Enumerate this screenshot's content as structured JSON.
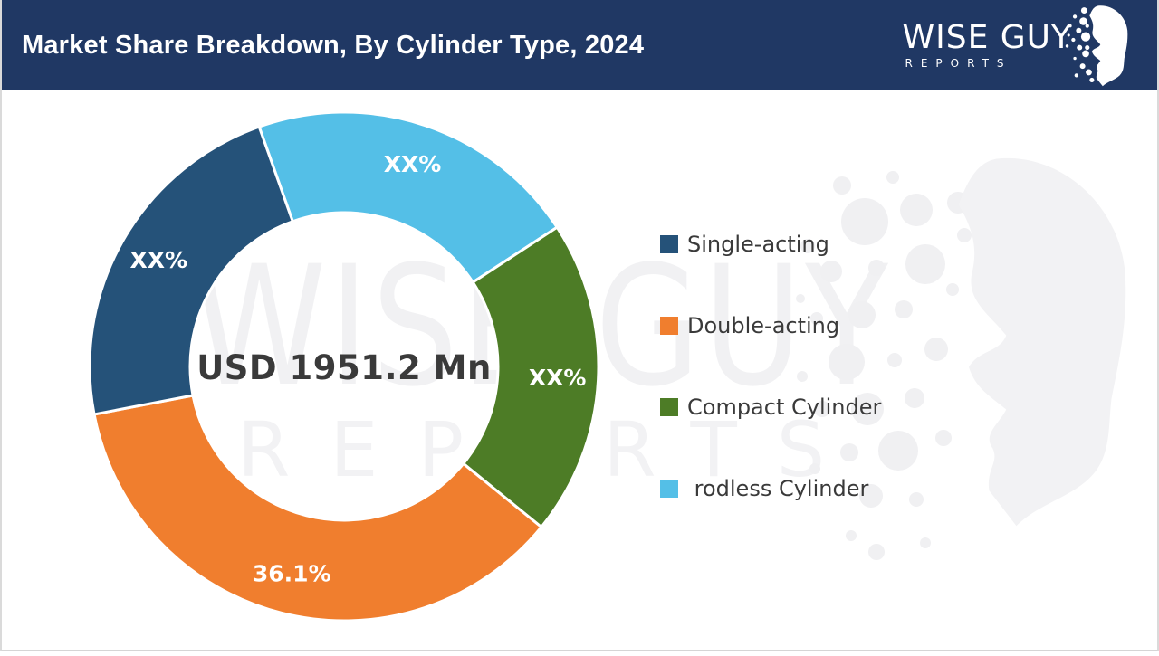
{
  "header": {
    "title": "Market Share Breakdown, By Cylinder Type, 2024",
    "logo": {
      "line1": "WISE GUY",
      "line2": "REPORTS"
    }
  },
  "colors": {
    "header_bg": "#203864",
    "text_dark": "#3A3A3A",
    "single_acting": "#255279",
    "double_acting": "#F07E2E",
    "compact_cylinder": "#4D7C26",
    "rodless_cylinder": "#54BFE7"
  },
  "watermark": {
    "line1": "WISE GUY",
    "line2": "REPORTS"
  },
  "chart_data": {
    "type": "pie",
    "subtype": "donut",
    "title": "Market Share Breakdown, By Cylinder Type, 2024",
    "center_label": "USD 1951.2 Mn",
    "start_angle_deg": -19.5,
    "legend_position": "right",
    "segments": [
      {
        "name": "rodless Cylinder",
        "value_pct": 21.2,
        "display_label": "XX%",
        "color": "#54BFE7"
      },
      {
        "name": "Compact Cylinder",
        "value_pct": 20.1,
        "display_label": "XX%",
        "color": "#4D7C26"
      },
      {
        "name": "Double-acting",
        "value_pct": 36.1,
        "display_label": "36.1%",
        "color": "#F07E2E"
      },
      {
        "name": "Single-acting",
        "value_pct": 22.6,
        "display_label": "XX%",
        "color": "#255279"
      }
    ],
    "legend": [
      {
        "label": "Single-acting",
        "color": "#255279"
      },
      {
        "label": "Double-acting",
        "color": "#F07E2E"
      },
      {
        "label": "Compact Cylinder",
        "color": "#4D7C26"
      },
      {
        "label": " rodless Cylinder",
        "color": "#54BFE7"
      }
    ]
  }
}
